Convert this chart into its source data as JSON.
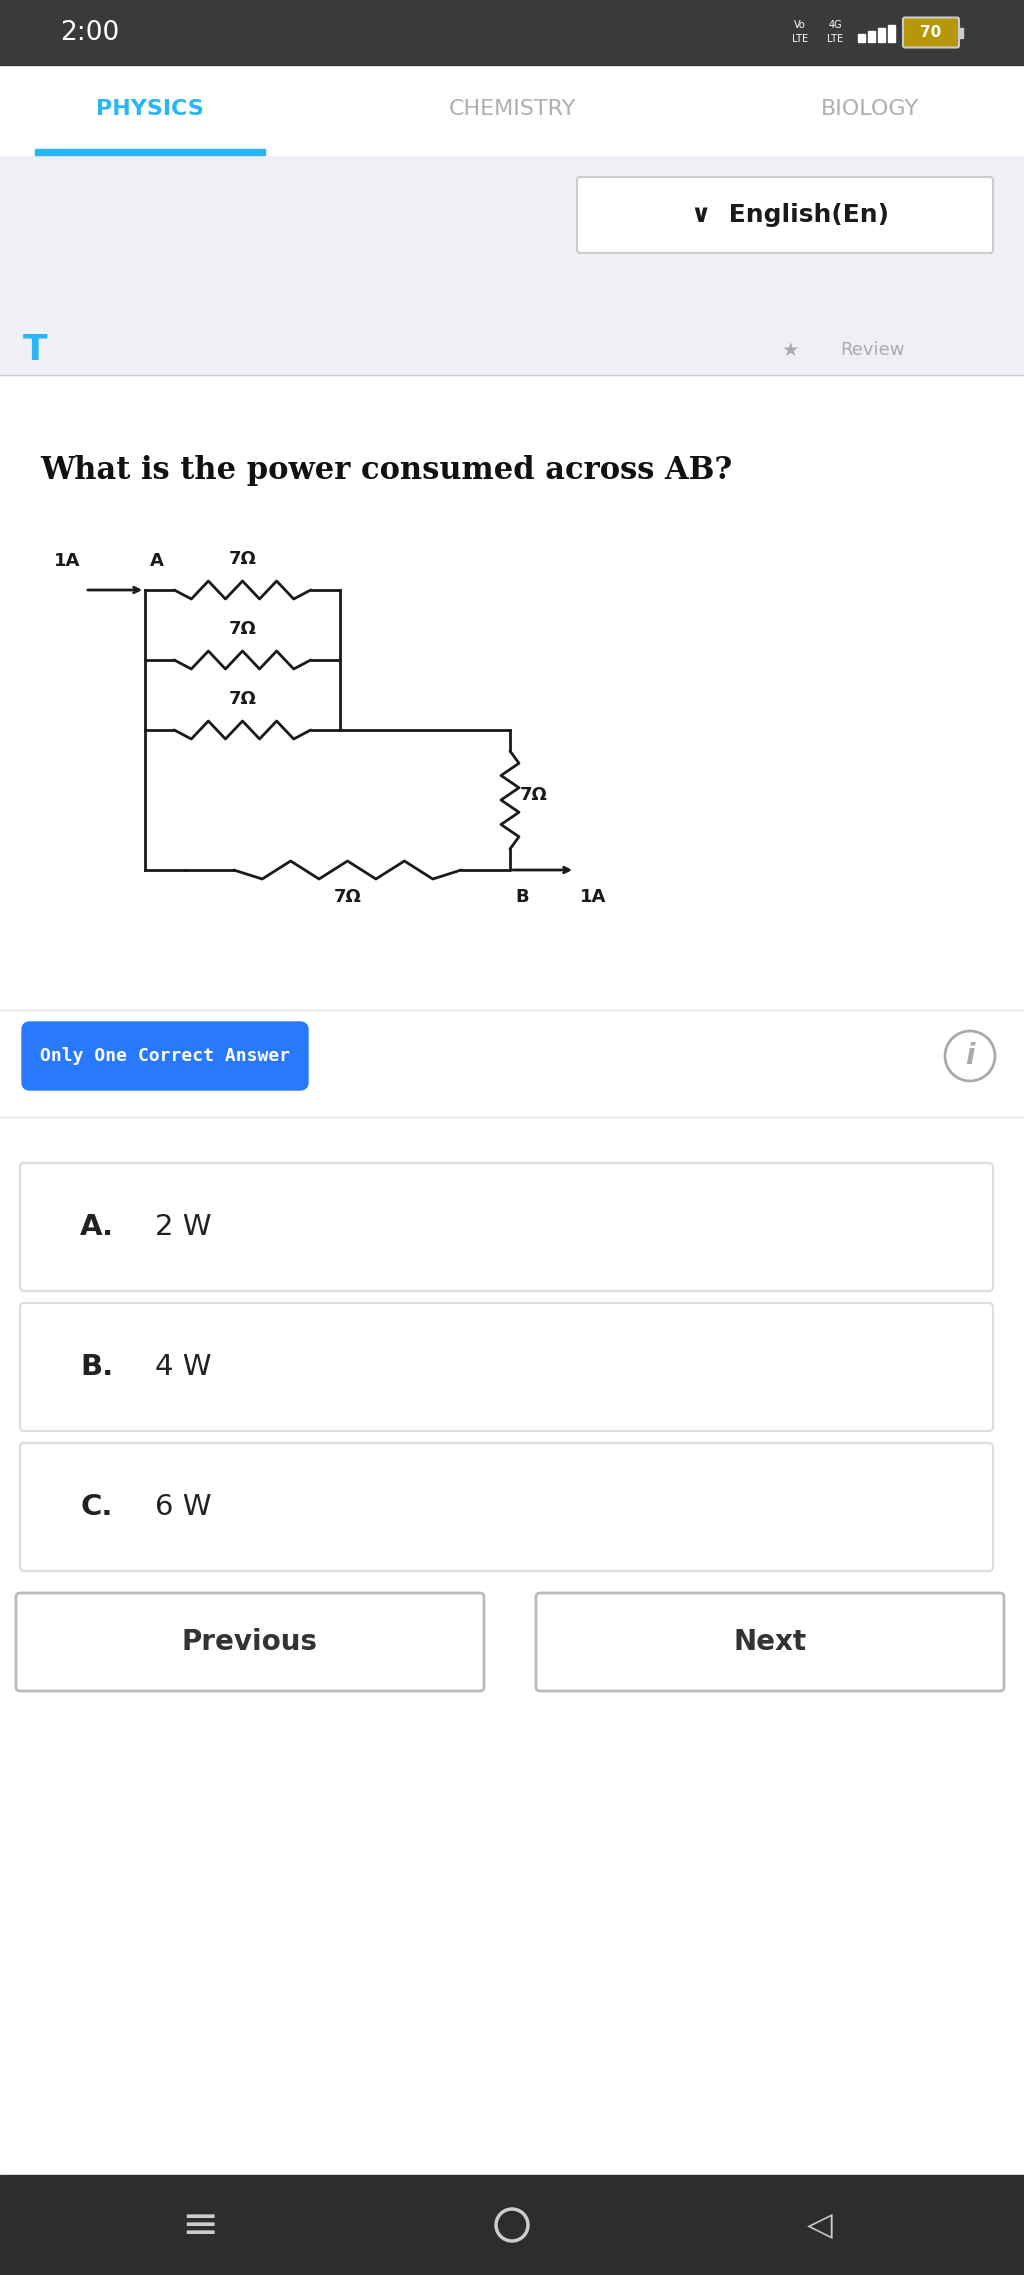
{
  "status_bar_bg": "#3a3a3a",
  "status_bar_text": "#ffffff",
  "time_text": "2:00",
  "battery_text": "70",
  "tab_bg": "#ffffff",
  "tab_active": "PHYSICS",
  "tab_active_color": "#29b6f6",
  "tab_inactive_color": "#b0b0b0",
  "tab_underline_color": "#29b6f6",
  "tabs": [
    "PHYSICS",
    "CHEMISTRY",
    "BIOLOGY"
  ],
  "english_text": "English(En)",
  "question_text": "What is the power consumed across AB?",
  "badge_text": "Only One Correct Answer",
  "badge_bg": "#2979ff",
  "badge_text_color": "#ffffff",
  "options": [
    {
      "label": "A.",
      "text": "2 W"
    },
    {
      "label": "B.",
      "text": "4 W"
    },
    {
      "label": "C.",
      "text": "6 W"
    }
  ],
  "btn_previous": "Previous",
  "btn_next": "Next",
  "nav_bar_bg": "#2d2d2d",
  "page_bg": "#ffffff",
  "content_bg": "#eef0f5"
}
